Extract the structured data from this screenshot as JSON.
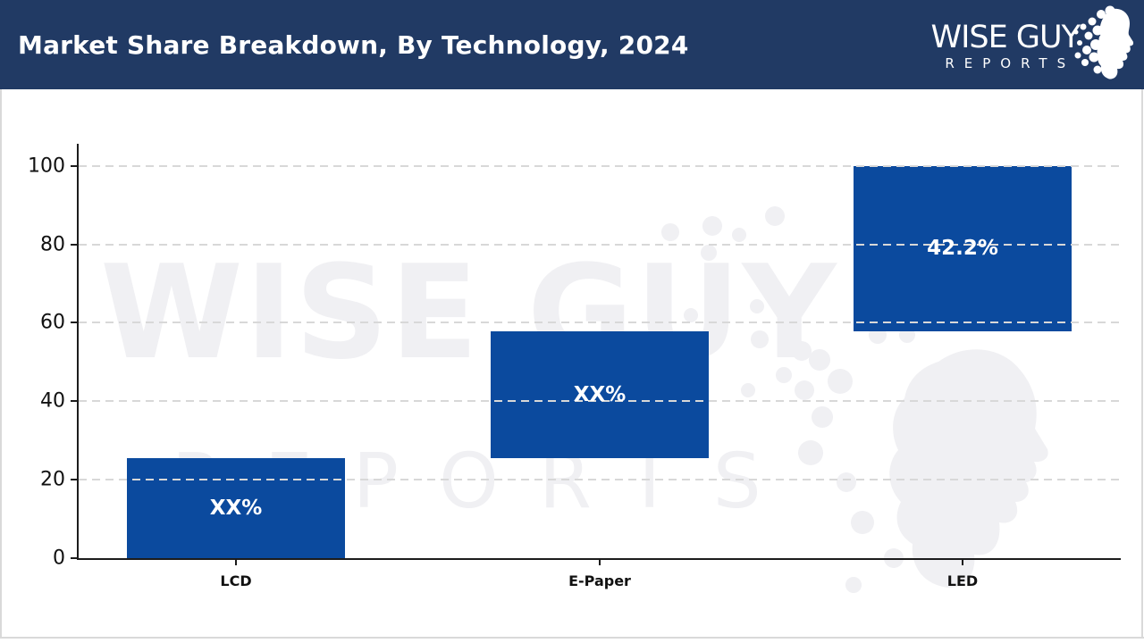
{
  "header": {
    "title": "Market Share Breakdown, By Technology, 2024",
    "logo": {
      "line1": "WISE GUY",
      "line2": "REPORTS"
    }
  },
  "watermark": {
    "line1": "WISE GUY",
    "line2": "REPORTS"
  },
  "chart_data": {
    "type": "bar",
    "subtype": "waterfall",
    "title": "Market Share Breakdown, By Technology, 2024",
    "categories": [
      "LCD",
      "E-Paper",
      "LED"
    ],
    "bars": [
      {
        "category": "LCD",
        "start": 0,
        "end": 25.5,
        "label": "XX%"
      },
      {
        "category": "E-Paper",
        "start": 25.5,
        "end": 57.8,
        "label": "XX%"
      },
      {
        "category": "LED",
        "start": 57.8,
        "end": 100,
        "label": "42.2%"
      }
    ],
    "yticks": [
      0,
      20,
      40,
      60,
      80,
      100
    ],
    "ylim": [
      0,
      105.6
    ],
    "xlabel": "",
    "ylabel": "",
    "grid": "horizontal-dashed",
    "grid_above_bars": true,
    "legend": "none",
    "bar_color": "#0b4a9e",
    "label_color": "#ffffff"
  },
  "colors": {
    "header_bg": "#213a64",
    "bar": "#0b4a9e",
    "grid": "#d8d8d8",
    "axis": "#1c1c1c",
    "watermark": "#f0f0f3",
    "border": "#d9d9d9"
  }
}
